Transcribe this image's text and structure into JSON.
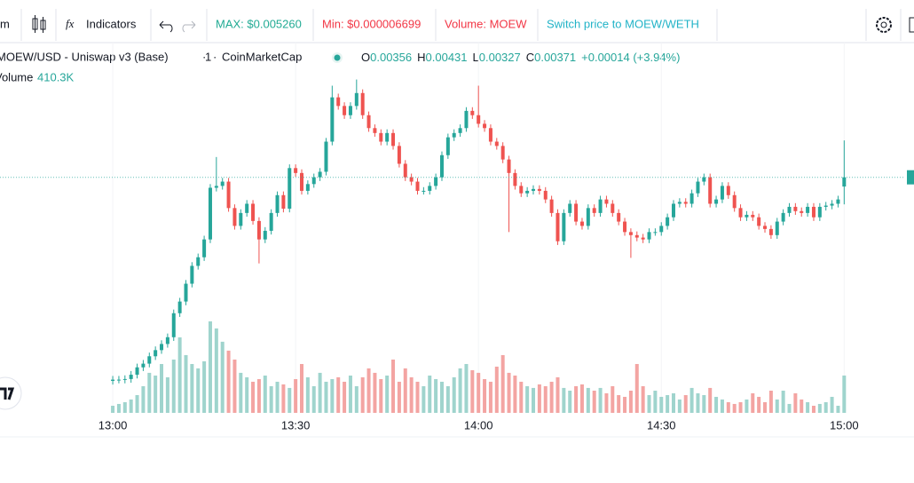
{
  "toolbar": {
    "interval": "m",
    "indicators": "Indicators",
    "max": "MAX: $0.005260",
    "min": "Min: $0.000006699",
    "volume": "Volume: MOEW",
    "switch": "Switch price to MOEW/WETH"
  },
  "chart_data": {
    "type": "candlestick",
    "title": "MOEW/USD - Uniswap v3 (Base)",
    "interval": "1",
    "source": "CoinMarketCap",
    "readout": [
      {
        "label": "O",
        "value": 0.00356
      },
      {
        "label": "H",
        "value": 0.00431
      },
      {
        "label": "L",
        "value": 0.00327
      },
      {
        "label": "C",
        "value": 0.00371
      }
    ],
    "change": "+0.00014 (+3.94%)",
    "volume_label": "Volume",
    "volume_value": "410.3K",
    "up_color": "#26a69a",
    "down_color": "#ef5350",
    "volume_up_color": "#9fd4cd",
    "volume_down_color": "#f3a4a2",
    "ylim": [
      -0.00012,
      0.0059
    ],
    "volume_lim": [
      0,
      4070000
    ],
    "xlim": [
      -18.5,
      130
    ],
    "xticks": [
      {
        "value": 0,
        "label": "13:00"
      },
      {
        "value": 30,
        "label": "13:30"
      },
      {
        "value": 60,
        "label": "14:00"
      },
      {
        "value": 90,
        "label": "14:30"
      },
      {
        "value": 120,
        "label": "15:00"
      }
    ],
    "open": [
      0.0004,
      0.00042,
      0.00042,
      0.00043,
      0.0005,
      0.00062,
      0.00068,
      0.0008,
      0.0009,
      0.001,
      0.00111,
      0.0015,
      0.00169,
      0.00198,
      0.00227,
      0.00241,
      0.0027,
      0.00354,
      0.00357,
      0.00364,
      0.00321,
      0.00292,
      0.00313,
      0.00328,
      0.003,
      0.0027,
      0.00284,
      0.00313,
      0.00342,
      0.0032,
      0.00386,
      0.00378,
      0.00349,
      0.0036,
      0.00371,
      0.0038,
      0.00429,
      0.00501,
      0.00487,
      0.00472,
      0.00487,
      0.00508,
      0.00472,
      0.00451,
      0.00443,
      0.00429,
      0.00443,
      0.00422,
      0.00393,
      0.00371,
      0.00364,
      0.00349,
      0.00349,
      0.00357,
      0.00371,
      0.00407,
      0.00436,
      0.00443,
      0.00451,
      0.00479,
      0.00472,
      0.00458,
      0.00451,
      0.00429,
      0.00422,
      0.004,
      0.00378,
      0.00357,
      0.00345,
      0.00349,
      0.00352,
      0.00349,
      0.00335,
      0.00313,
      0.00267,
      0.00313,
      0.00328,
      0.00299,
      0.00292,
      0.00321,
      0.00313,
      0.00335,
      0.00328,
      0.00313,
      0.00299,
      0.00282,
      0.00277,
      0.00273,
      0.0027,
      0.00282,
      0.00282,
      0.00292,
      0.00306,
      0.00328,
      0.00331,
      0.00328,
      0.00345,
      0.00364,
      0.00371,
      0.00328,
      0.00335,
      0.00357,
      0.00342,
      0.00321,
      0.00306,
      0.0031,
      0.00306,
      0.00292,
      0.00287,
      0.00277,
      0.00299,
      0.00313,
      0.00323,
      0.00316,
      0.00313,
      0.00323,
      0.00306,
      0.00323,
      0.00325,
      0.00328,
      0.00356
    ],
    "high": [
      0.00048,
      0.00048,
      0.00049,
      0.00056,
      0.00068,
      0.00074,
      0.00086,
      0.00096,
      0.00106,
      0.00117,
      0.00156,
      0.00175,
      0.00204,
      0.00233,
      0.00247,
      0.00276,
      0.0036,
      0.00404,
      0.0037,
      0.0037,
      0.00327,
      0.00319,
      0.00334,
      0.00334,
      0.00306,
      0.0029,
      0.00319,
      0.00348,
      0.00348,
      0.00392,
      0.00392,
      0.00384,
      0.00366,
      0.00377,
      0.00386,
      0.00435,
      0.0052,
      0.00507,
      0.00493,
      0.00493,
      0.0053,
      0.00514,
      0.00478,
      0.00457,
      0.00449,
      0.00449,
      0.00449,
      0.00428,
      0.00399,
      0.00377,
      0.0037,
      0.00355,
      0.00363,
      0.00377,
      0.00413,
      0.00442,
      0.00449,
      0.00457,
      0.00485,
      0.00485,
      0.0052,
      0.00464,
      0.00457,
      0.00435,
      0.00428,
      0.00406,
      0.00384,
      0.00363,
      0.00355,
      0.00358,
      0.00358,
      0.00355,
      0.00341,
      0.00319,
      0.00319,
      0.00334,
      0.00334,
      0.00305,
      0.00327,
      0.00327,
      0.00341,
      0.00341,
      0.00334,
      0.00319,
      0.00305,
      0.00288,
      0.00283,
      0.00279,
      0.00288,
      0.00288,
      0.00298,
      0.00312,
      0.00334,
      0.00337,
      0.00337,
      0.00351,
      0.0037,
      0.00377,
      0.00377,
      0.00341,
      0.00363,
      0.00363,
      0.00348,
      0.00327,
      0.00316,
      0.00316,
      0.00312,
      0.00298,
      0.00293,
      0.00305,
      0.00319,
      0.00329,
      0.00329,
      0.00322,
      0.00329,
      0.00329,
      0.00329,
      0.00331,
      0.00334,
      0.00341,
      0.00431
    ],
    "low": [
      0.00034,
      0.00036,
      0.00036,
      0.00037,
      0.00044,
      0.00056,
      0.00062,
      0.00074,
      0.00084,
      0.00094,
      0.00105,
      0.00144,
      0.00163,
      0.00192,
      0.00221,
      0.00235,
      0.00264,
      0.00348,
      0.00351,
      0.00315,
      0.00286,
      0.00286,
      0.00307,
      0.00294,
      0.00231,
      0.00264,
      0.00278,
      0.00307,
      0.00314,
      0.00314,
      0.00372,
      0.00343,
      0.00343,
      0.00354,
      0.00365,
      0.00374,
      0.00423,
      0.00481,
      0.00466,
      0.00466,
      0.00481,
      0.00466,
      0.00445,
      0.00437,
      0.00423,
      0.00423,
      0.00416,
      0.00387,
      0.00365,
      0.00358,
      0.00343,
      0.00343,
      0.00343,
      0.00351,
      0.00365,
      0.00401,
      0.0043,
      0.00437,
      0.00445,
      0.00466,
      0.00452,
      0.00445,
      0.00423,
      0.00416,
      0.00394,
      0.00282,
      0.00351,
      0.00339,
      0.00339,
      0.00343,
      0.00343,
      0.00329,
      0.00307,
      0.00261,
      0.00261,
      0.00307,
      0.00293,
      0.00286,
      0.00286,
      0.00307,
      0.00307,
      0.00322,
      0.00307,
      0.00293,
      0.00276,
      0.0024,
      0.00267,
      0.00264,
      0.00264,
      0.00276,
      0.00276,
      0.00286,
      0.003,
      0.00322,
      0.00322,
      0.00322,
      0.00339,
      0.00358,
      0.00322,
      0.00322,
      0.00329,
      0.00336,
      0.00315,
      0.003,
      0.003,
      0.003,
      0.00286,
      0.00281,
      0.00271,
      0.00271,
      0.00293,
      0.00307,
      0.0031,
      0.00307,
      0.00307,
      0.003,
      0.003,
      0.00317,
      0.00319,
      0.00322,
      0.00327
    ],
    "close": [
      0.00042,
      0.00042,
      0.00043,
      0.0005,
      0.00062,
      0.00068,
      0.0008,
      0.0009,
      0.001,
      0.00111,
      0.0015,
      0.00169,
      0.00198,
      0.00227,
      0.00241,
      0.0027,
      0.00354,
      0.00357,
      0.00364,
      0.00321,
      0.00292,
      0.00313,
      0.00328,
      0.003,
      0.0027,
      0.00284,
      0.00313,
      0.00342,
      0.0032,
      0.00386,
      0.00378,
      0.00349,
      0.0036,
      0.00371,
      0.0038,
      0.00429,
      0.00501,
      0.00487,
      0.00472,
      0.00487,
      0.00508,
      0.00472,
      0.00451,
      0.00443,
      0.00429,
      0.00443,
      0.00422,
      0.00393,
      0.00371,
      0.00364,
      0.00349,
      0.00349,
      0.00357,
      0.00371,
      0.00407,
      0.00436,
      0.00443,
      0.00451,
      0.00479,
      0.00472,
      0.00458,
      0.00451,
      0.00429,
      0.00422,
      0.004,
      0.00378,
      0.00357,
      0.00345,
      0.00349,
      0.00352,
      0.00349,
      0.00335,
      0.00313,
      0.00267,
      0.00313,
      0.00328,
      0.00299,
      0.00292,
      0.00321,
      0.00313,
      0.00335,
      0.00328,
      0.00313,
      0.00299,
      0.00282,
      0.00277,
      0.00273,
      0.0027,
      0.00282,
      0.00282,
      0.00292,
      0.00306,
      0.00328,
      0.00331,
      0.00328,
      0.00345,
      0.00364,
      0.00371,
      0.00328,
      0.00335,
      0.00357,
      0.00342,
      0.00321,
      0.00306,
      0.0031,
      0.00306,
      0.00292,
      0.00287,
      0.00277,
      0.00299,
      0.00313,
      0.00323,
      0.00316,
      0.00313,
      0.00323,
      0.00306,
      0.00323,
      0.00325,
      0.00328,
      0.00335,
      0.00371
    ],
    "volume": [
      78000,
      98000,
      117000,
      147000,
      195000,
      293000,
      440000,
      410000,
      537000,
      391000,
      586000,
      830000,
      635000,
      537000,
      489000,
      567000,
      1006000,
      928000,
      782000,
      684000,
      586000,
      440000,
      391000,
      342000,
      371000,
      410000,
      293000,
      342000,
      313000,
      274000,
      371000,
      537000,
      391000,
      293000,
      440000,
      342000,
      371000,
      391000,
      342000,
      410000,
      293000,
      391000,
      489000,
      440000,
      371000,
      410000,
      586000,
      342000,
      489000,
      391000,
      342000,
      293000,
      410000,
      371000,
      342000,
      293000,
      391000,
      489000,
      537000,
      469000,
      440000,
      371000,
      342000,
      508000,
      635000,
      440000,
      410000,
      342000,
      293000,
      274000,
      313000,
      293000,
      342000,
      391000,
      274000,
      244000,
      293000,
      313000,
      274000,
      244000,
      274000,
      215000,
      293000,
      195000,
      176000,
      244000,
      537000,
      293000,
      195000,
      244000,
      176000,
      195000,
      215000,
      147000,
      195000,
      274000,
      215000,
      195000,
      274000,
      176000,
      147000,
      117000,
      98000,
      117000,
      147000,
      215000,
      176000,
      117000,
      244000,
      147000,
      244000,
      98000,
      215000,
      147000,
      117000,
      78000,
      98000,
      117000,
      176000,
      78000,
      410300
    ]
  }
}
